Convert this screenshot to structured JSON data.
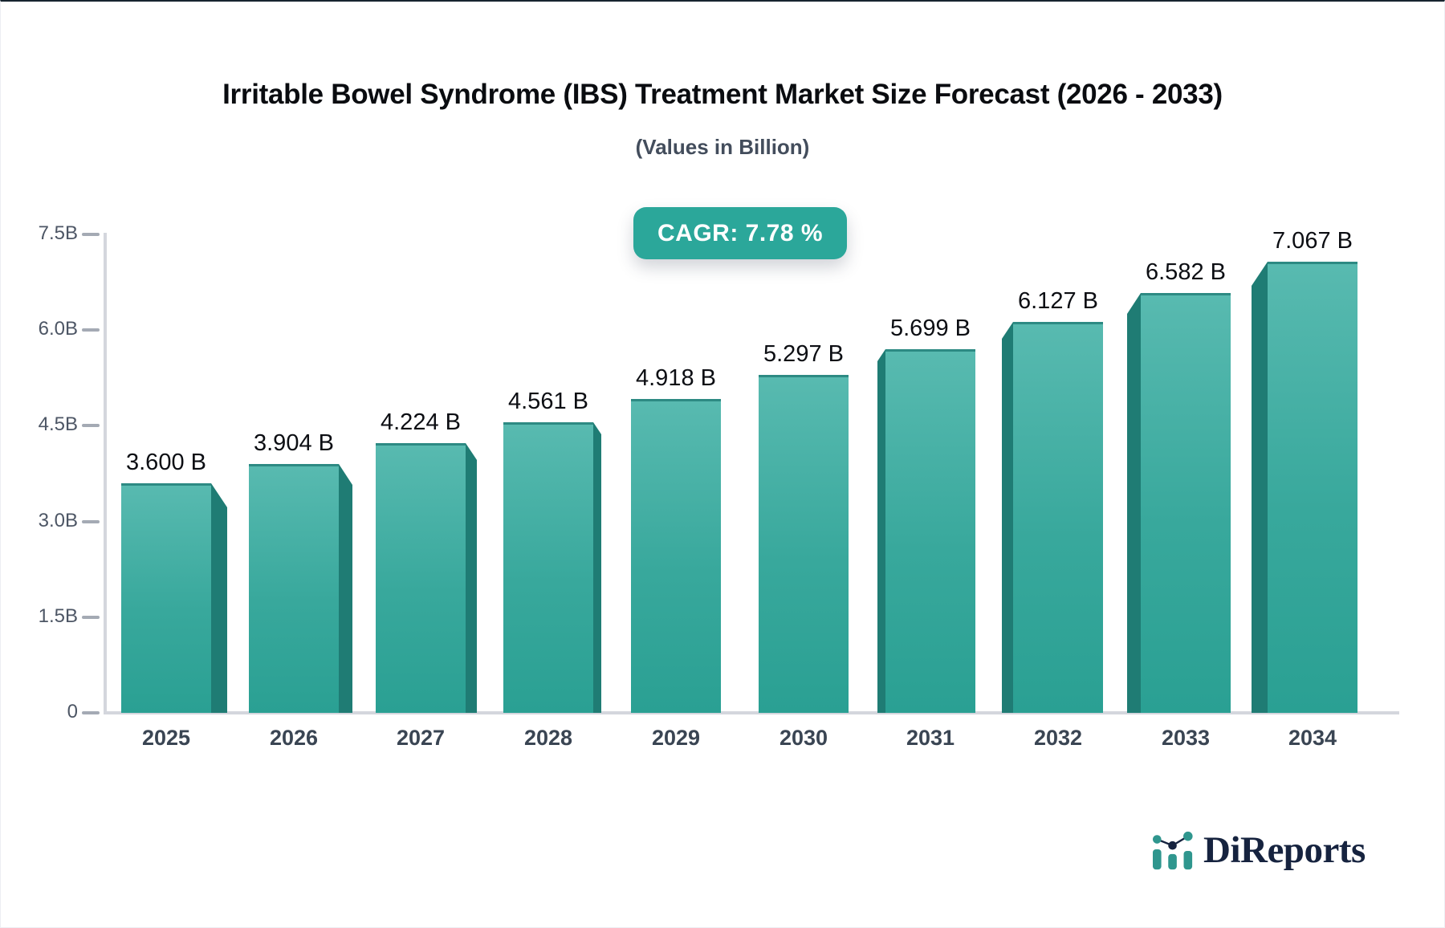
{
  "page": {
    "title": "Irritable Bowel Syndrome (IBS) Treatment Market Size Forecast (2026 - 2033)",
    "subtitle": "(Values in Billion)",
    "cagr_label": "CAGR: 7.78 %",
    "brand": {
      "name": "DiReports",
      "icon": "mini-bar-chart-icon"
    },
    "colors": {
      "badge_bg": "#2ba79a",
      "bar_face_top": "#58bab0",
      "bar_face_bottom": "#2aa093",
      "bar_top_edge": "#2d8a83",
      "bar_side": "#1f7c74",
      "axis_line": "#d4d6dd",
      "tick": "#a4aab4",
      "y_label": "#4d5665",
      "x_label": "#3a4553",
      "value_label": "#0c0e13",
      "logo_navy": "#16233f",
      "logo_teal": "#2f968e"
    }
  },
  "chart_data": {
    "type": "bar",
    "title": "Irritable Bowel Syndrome (IBS) Treatment Market Size Forecast (2026 - 2033)",
    "subtitle": "(Values in Billion)",
    "cagr": "7.78 %",
    "categories": [
      "2025",
      "2026",
      "2027",
      "2028",
      "2029",
      "2030",
      "2031",
      "2032",
      "2033",
      "2034"
    ],
    "values": [
      3.6,
      3.904,
      4.224,
      4.561,
      4.918,
      5.297,
      5.699,
      6.127,
      6.582,
      7.067
    ],
    "value_labels": [
      "3.600 B",
      "3.904 B",
      "4.224 B",
      "4.561 B",
      "4.918 B",
      "5.297 B",
      "5.699 B",
      "6.127 B",
      "6.582 B",
      "7.067 B"
    ],
    "yticks": [
      {
        "label": "7.5B",
        "value": 7.5
      },
      {
        "label": "6.0B",
        "value": 6.0
      },
      {
        "label": "4.5B",
        "value": 4.5
      },
      {
        "label": "3.0B",
        "value": 3.0
      },
      {
        "label": "1.5B",
        "value": 1.5
      },
      {
        "label": "0",
        "value": 0
      }
    ],
    "ylim": [
      0,
      7.5
    ],
    "xlabel": "",
    "ylabel": "",
    "grid": false,
    "legend": false,
    "bar_3d_sides": [
      "right",
      "right",
      "right",
      "right",
      "none",
      "none",
      "left",
      "left",
      "left",
      "left"
    ],
    "bar_3d_side_widths": [
      20,
      17,
      14,
      10,
      0,
      0,
      10,
      14,
      17,
      20
    ]
  }
}
